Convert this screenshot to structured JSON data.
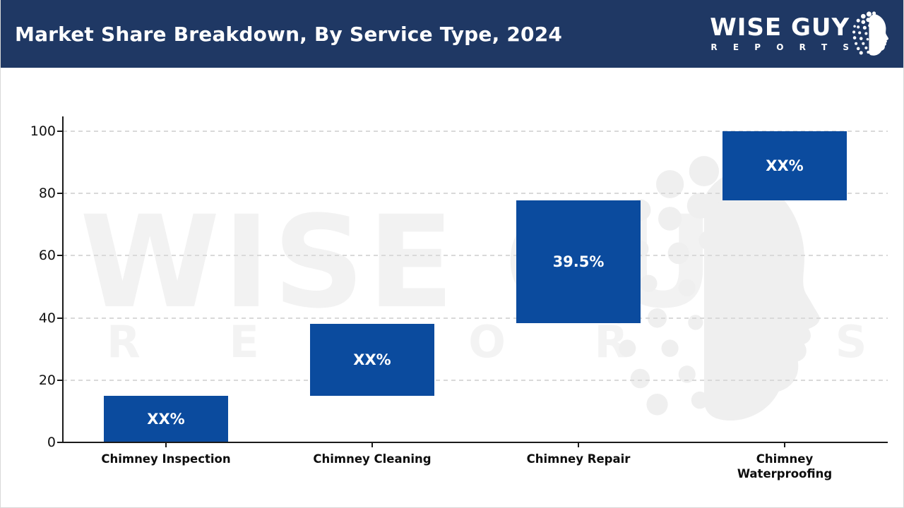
{
  "header": {
    "title": "Market Share Breakdown, By Service Type, 2024",
    "bg_color": "#1f3864",
    "logo": {
      "name": "WISE GUY",
      "sub": "R E P O R T S"
    }
  },
  "watermark": {
    "big_text": "WISE GU",
    "sub_text": "R E P O R T S"
  },
  "chart_data": {
    "type": "bar",
    "subtype": "waterfall",
    "title": "Market Share Breakdown, By Service Type, 2024",
    "categories": [
      "Chimney Inspection",
      "Chimney Cleaning",
      "Chimney Repair",
      "Chimney Waterproofing"
    ],
    "series": [
      {
        "name": "Market share (%)",
        "segments": [
          {
            "category": "Chimney Inspection",
            "start": 0,
            "end": 15,
            "value_label": "XX%"
          },
          {
            "category": "Chimney Cleaning",
            "start": 15,
            "end": 38.2,
            "value_label": "XX%"
          },
          {
            "category": "Chimney Repair",
            "start": 38.3,
            "end": 77.8,
            "value_label": "39.5%"
          },
          {
            "category": "Chimney Waterproofing",
            "start": 77.8,
            "end": 100,
            "value_label": "XX%"
          }
        ]
      }
    ],
    "xlabel": "",
    "ylabel": "",
    "ylim": [
      0,
      100
    ],
    "yticks": [
      0,
      20,
      40,
      60,
      80,
      100
    ],
    "grid": "horizontal-dashed",
    "legend": "none",
    "bar_color": "#0b4b9e",
    "bar_label_color": "#ffffff",
    "grid_color": "#d9d9d9",
    "axis_color": "#1a1a1a"
  }
}
